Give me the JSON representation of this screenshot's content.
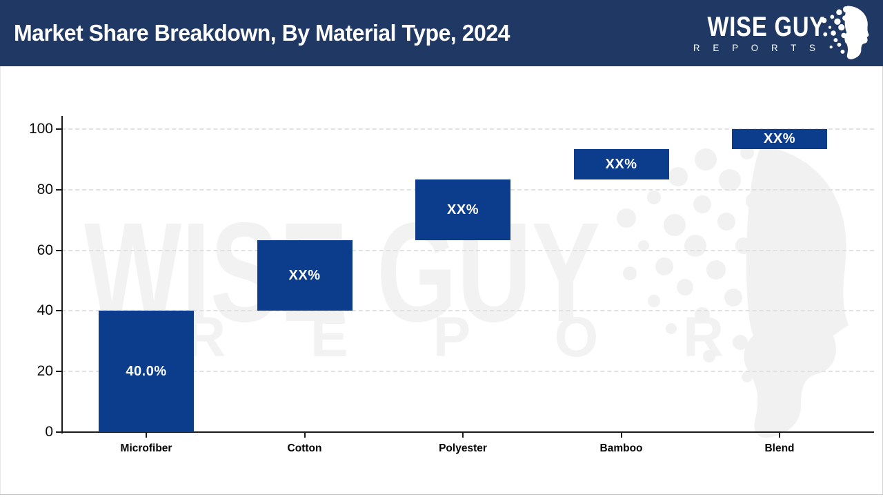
{
  "header": {
    "title": "Market Share Breakdown, By Material Type, 2024",
    "logo": {
      "line1": "WISE GUY",
      "line2": "R E P O R T S"
    }
  },
  "watermark": {
    "line1": "WISE GUY",
    "line2": "R E P O R T S"
  },
  "colors": {
    "header_bg": "#1f3864",
    "bar": "#0c3c8c",
    "grid": "#e1e1e1",
    "axis": "#1a1a1a",
    "watermark": "#f2f2f2"
  },
  "chart_data": {
    "type": "bar",
    "subtype": "waterfall",
    "title": "Market Share Breakdown, By Material Type, 2024",
    "categories": [
      "Microfiber",
      "Cotton",
      "Polyester",
      "Bamboo",
      "Blend"
    ],
    "segments": [
      {
        "category": "Microfiber",
        "start": 0,
        "end": 40,
        "value": 40,
        "display_label": "40.0%"
      },
      {
        "category": "Cotton",
        "start": 40,
        "end": 63.3,
        "value": 23.3,
        "display_label": "XX%"
      },
      {
        "category": "Polyester",
        "start": 63.3,
        "end": 83.3,
        "value": 20,
        "display_label": "XX%"
      },
      {
        "category": "Bamboo",
        "start": 83.3,
        "end": 93.3,
        "value": 10,
        "display_label": "XX%"
      },
      {
        "category": "Blend",
        "start": 93.3,
        "end": 100,
        "value": 6.7,
        "display_label": "XX%"
      }
    ],
    "xlabel": "",
    "ylabel": "",
    "ylim": [
      0,
      100
    ],
    "yticks": [
      0,
      20,
      40,
      60,
      80,
      100
    ],
    "grid": "horizontal-dashed",
    "legend": "none",
    "bar_color": "#0c3c8c"
  }
}
